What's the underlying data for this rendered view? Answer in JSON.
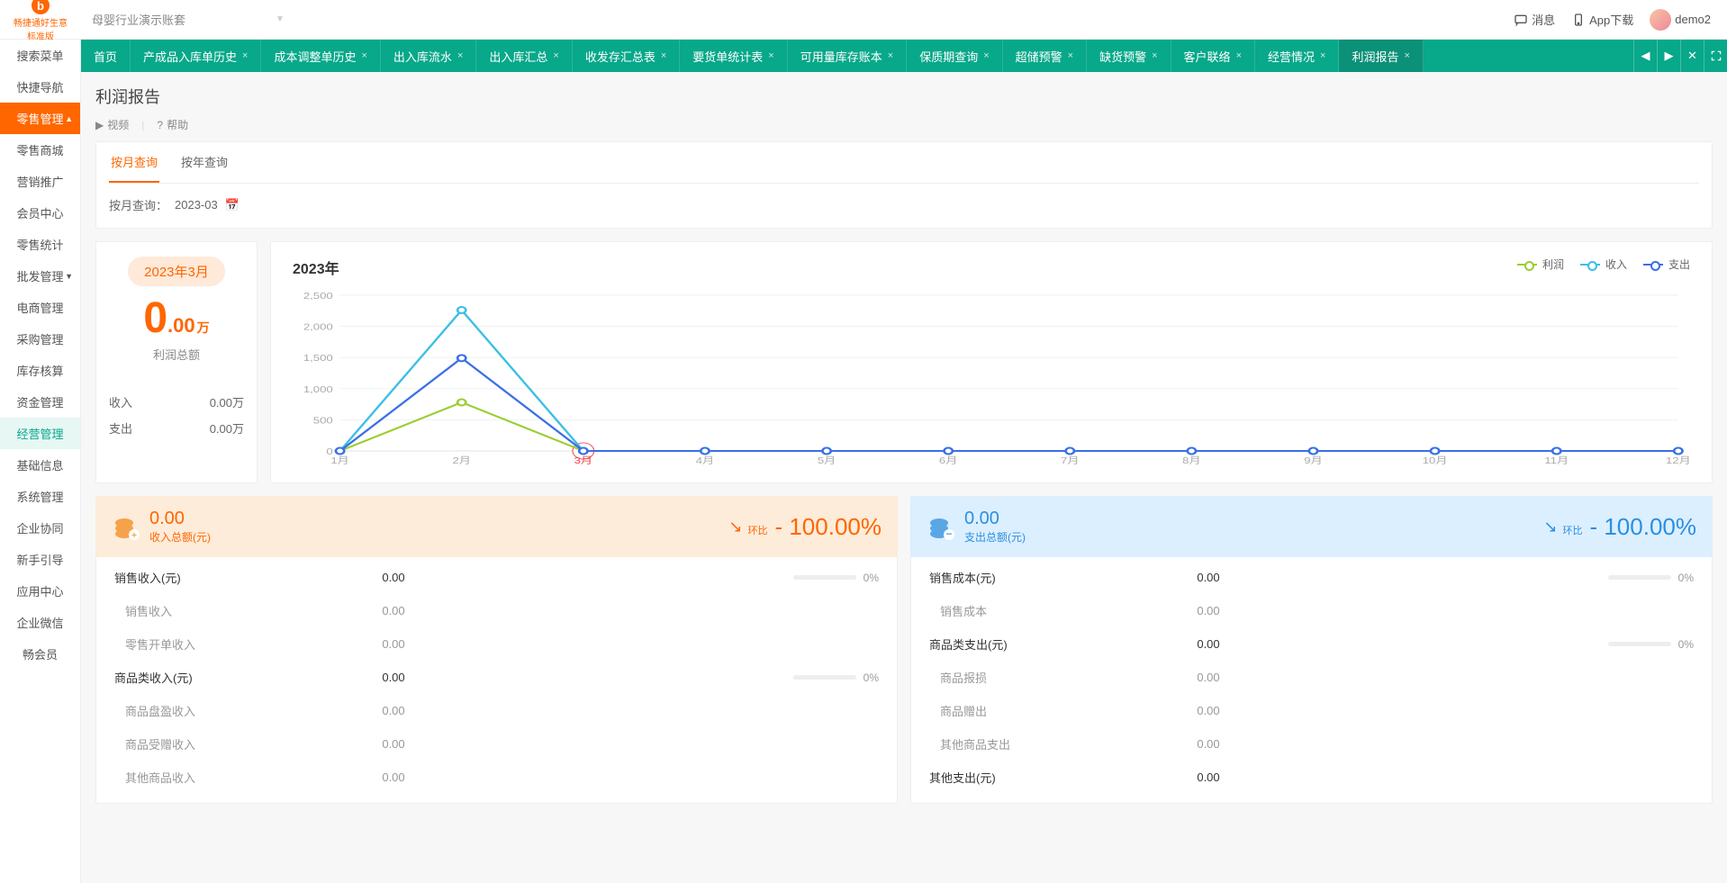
{
  "topbar": {
    "logo_letter": "b",
    "logo_text": "畅捷通好生意",
    "logo_sub": "标准版",
    "account": "母婴行业演示账套",
    "msg": "消息",
    "app": "App下载",
    "user": "demo2"
  },
  "sidebar": {
    "items": [
      {
        "label": "搜索菜单"
      },
      {
        "label": "快捷导航"
      },
      {
        "label": "零售管理",
        "active": true,
        "caret": "▲"
      },
      {
        "label": "零售商城"
      },
      {
        "label": "营销推广"
      },
      {
        "label": "会员中心"
      },
      {
        "label": "零售统计"
      },
      {
        "label": "批发管理",
        "caret": "▼"
      },
      {
        "label": "电商管理"
      },
      {
        "label": "采购管理"
      },
      {
        "label": "库存核算"
      },
      {
        "label": "资金管理"
      },
      {
        "label": "经营管理",
        "current": true
      },
      {
        "label": "基础信息"
      },
      {
        "label": "系统管理"
      },
      {
        "label": "企业协同"
      },
      {
        "label": "新手引导"
      },
      {
        "label": "应用中心"
      },
      {
        "label": "企业微信"
      },
      {
        "label": "畅会员"
      }
    ]
  },
  "tabs": {
    "items": [
      {
        "label": "首页",
        "closable": false
      },
      {
        "label": "产成品入库单历史",
        "closable": true
      },
      {
        "label": "成本调整单历史",
        "closable": true
      },
      {
        "label": "出入库流水",
        "closable": true
      },
      {
        "label": "出入库汇总",
        "closable": true
      },
      {
        "label": "收发存汇总表",
        "closable": true
      },
      {
        "label": "要货单统计表",
        "closable": true
      },
      {
        "label": "可用量库存账本",
        "closable": true
      },
      {
        "label": "保质期查询",
        "closable": true
      },
      {
        "label": "超储预警",
        "closable": true
      },
      {
        "label": "缺货预警",
        "closable": true
      },
      {
        "label": "客户联络",
        "closable": true
      },
      {
        "label": "经营情况",
        "closable": true
      },
      {
        "label": "利润报告",
        "closable": true,
        "active": true
      }
    ]
  },
  "page": {
    "title": "利润报告",
    "video": "视频",
    "help": "帮助",
    "sub_tabs": [
      "按月查询",
      "按年查询"
    ],
    "sub_active": 0,
    "query_label": "按月查询：",
    "query_value": "2023-03"
  },
  "summary_left": {
    "period": "2023年3月",
    "big_int": "0",
    "big_dec": ".00",
    "big_unit": "万",
    "label": "利润总额",
    "rows": [
      {
        "k": "收入",
        "v": "0.00万"
      },
      {
        "k": "支出",
        "v": "0.00万"
      }
    ]
  },
  "chart": {
    "title": "2023年",
    "legend": [
      {
        "name": "利润",
        "color": "#9acd32"
      },
      {
        "name": "收入",
        "color": "#3bbfe6"
      },
      {
        "name": "支出",
        "color": "#3b6fe6"
      }
    ],
    "x_labels": [
      "1月",
      "2月",
      "3月",
      "4月",
      "5月",
      "6月",
      "7月",
      "8月",
      "9月",
      "10月",
      "11月",
      "12月"
    ],
    "highlight_x": 2,
    "y_ticks": [
      0,
      500,
      1000,
      1500,
      2000,
      2500
    ],
    "ylim": [
      0,
      2600
    ],
    "grid_color": "#eef2f2",
    "axis_color": "#dfe5e5",
    "series": [
      {
        "color": "#9acd32",
        "points": [
          0,
          780,
          0,
          0,
          0,
          0,
          0,
          0,
          0,
          0,
          0,
          0
        ]
      },
      {
        "color": "#3bbfe6",
        "points": [
          0,
          2260,
          0,
          0,
          0,
          0,
          0,
          0,
          0,
          0,
          0,
          0
        ]
      },
      {
        "color": "#3b6fe6",
        "points": [
          0,
          1490,
          0,
          0,
          0,
          0,
          0,
          0,
          0,
          0,
          0,
          0
        ]
      }
    ]
  },
  "income": {
    "value": "0.00",
    "label": "收入总额(元)",
    "hb_label": "环比",
    "change": "- 100.00%",
    "rows": [
      {
        "name": "销售收入(元)",
        "val": "0.00",
        "pct": "0%",
        "bold": true
      },
      {
        "name": "销售收入",
        "val": "0.00",
        "sub": true
      },
      {
        "name": "零售开单收入",
        "val": "0.00",
        "sub": true
      },
      {
        "name": "商品类收入(元)",
        "val": "0.00",
        "pct": "0%",
        "bold": true
      },
      {
        "name": "商品盘盈收入",
        "val": "0.00",
        "sub": true
      },
      {
        "name": "商品受赠收入",
        "val": "0.00",
        "sub": true
      },
      {
        "name": "其他商品收入",
        "val": "0.00",
        "sub": true
      }
    ]
  },
  "expense": {
    "value": "0.00",
    "label": "支出总额(元)",
    "hb_label": "环比",
    "change": "- 100.00%",
    "rows": [
      {
        "name": "销售成本(元)",
        "val": "0.00",
        "pct": "0%",
        "bold": true
      },
      {
        "name": "销售成本",
        "val": "0.00",
        "sub": true
      },
      {
        "name": "商品类支出(元)",
        "val": "0.00",
        "pct": "0%",
        "bold": true
      },
      {
        "name": "商品报损",
        "val": "0.00",
        "sub": true
      },
      {
        "name": "商品赠出",
        "val": "0.00",
        "sub": true
      },
      {
        "name": "其他商品支出",
        "val": "0.00",
        "sub": true
      },
      {
        "name": "其他支出(元)",
        "val": "0.00",
        "pct": "",
        "bold": true
      }
    ]
  }
}
